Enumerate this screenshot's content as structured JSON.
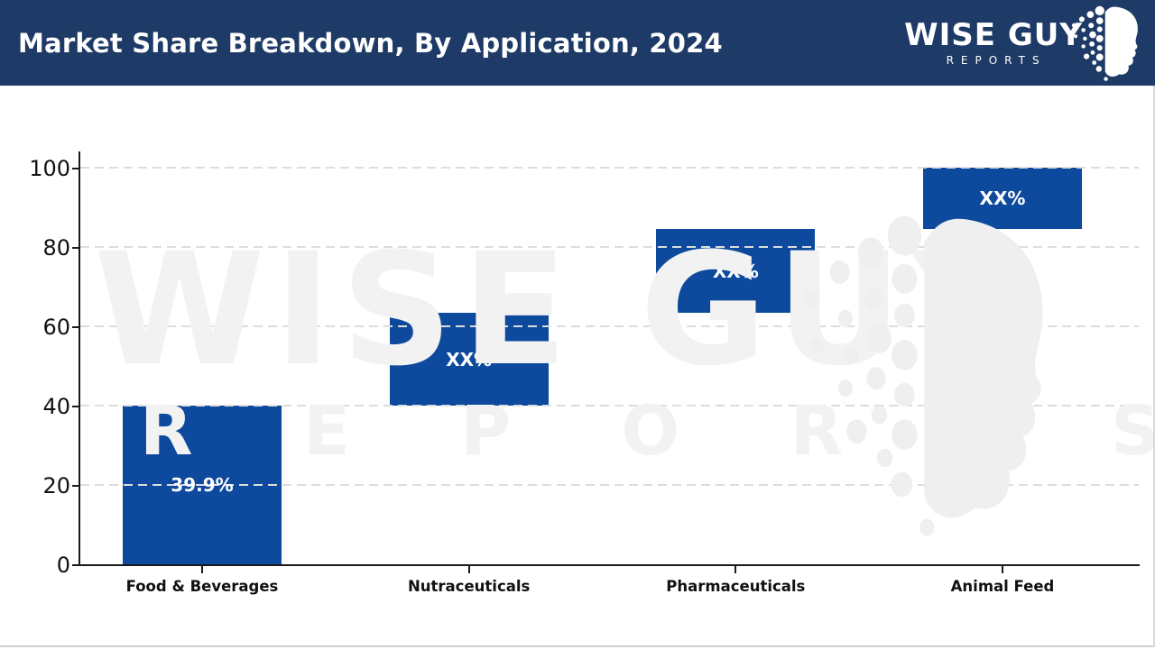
{
  "header": {
    "title": "Market Share Breakdown, By Application, 2024",
    "logo": {
      "line1": "WISE GUY",
      "line2": "REPORTS"
    }
  },
  "watermark": {
    "line1": "WISE GUY",
    "line2": "R E P O R T S"
  },
  "colors": {
    "header_bg": "#1E3A66",
    "bar": "#0D4A9E",
    "grid": "#DDDDDD",
    "axis": "#1A1A1A",
    "bar_label_text": "#FFFFFF",
    "watermark": "#F2F2F2"
  },
  "chart_data": {
    "type": "bar",
    "variant": "waterfall-style floating segments",
    "title": "Market Share Breakdown, By Application, 2024",
    "categories": [
      "Food & Beverages",
      "Nutraceuticals",
      "Pharmaceuticals",
      "Animal Feed"
    ],
    "segments": [
      {
        "category": "Food & Beverages",
        "start": 0,
        "end": 39.9,
        "label": "39.9%"
      },
      {
        "category": "Nutraceuticals",
        "start": 39.9,
        "end": 63.4,
        "label": "XX%"
      },
      {
        "category": "Pharmaceuticals",
        "start": 63.4,
        "end": 84.5,
        "label": "XX%"
      },
      {
        "category": "Animal Feed",
        "start": 84.5,
        "end": 100,
        "label": "XX%"
      }
    ],
    "xlabel": "",
    "ylabel": "",
    "ylim": [
      0,
      100
    ],
    "yticks": [
      0,
      20,
      40,
      60,
      80,
      100
    ],
    "grid": "horizontal dashed, drawn over bars",
    "legend": "none"
  }
}
